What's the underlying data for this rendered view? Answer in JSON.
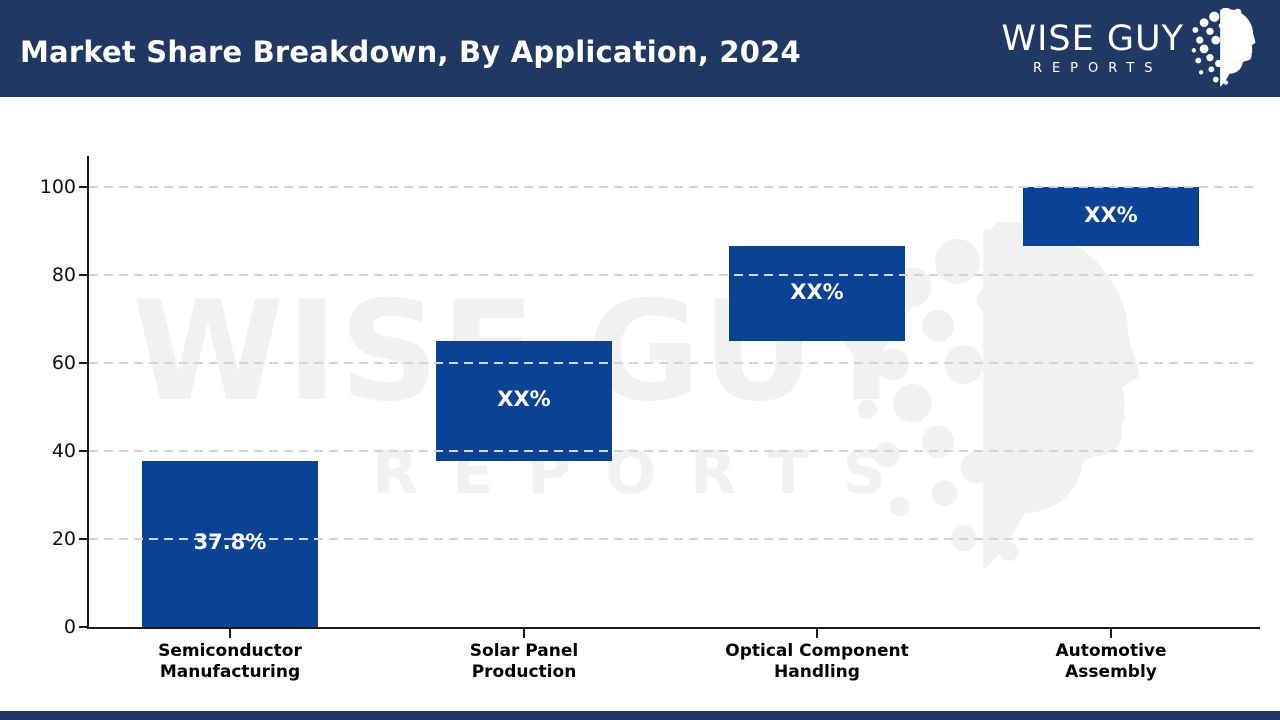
{
  "header": {
    "title": "Market Share Breakdown, By Application, 2024",
    "brand": {
      "line1": "WISE GUY",
      "line2": "REPORTS"
    }
  },
  "watermark": {
    "line1": "WISE GUY",
    "line2": "REPORTS"
  },
  "chart_data": {
    "type": "bar",
    "variant": "waterfall",
    "title": "Market Share Breakdown, By Application, 2024",
    "xlabel": "",
    "ylabel": "",
    "ylim": [
      0,
      100
    ],
    "y_ticks": [
      0,
      20,
      40,
      60,
      80,
      100
    ],
    "grid": "horizontal-dashed",
    "legend": false,
    "bar_color": "#0A4296",
    "value_label_color": "#ffffff",
    "categories": [
      [
        "Semiconductor",
        "Manufacturing"
      ],
      [
        "Solar Panel",
        "Production"
      ],
      [
        "Optical Component",
        "Handling"
      ],
      [
        "Automotive",
        "Assembly"
      ]
    ],
    "segments": [
      {
        "category": "Semiconductor Manufacturing",
        "start": 0,
        "end": 37.8,
        "label": "37.8%"
      },
      {
        "category": "Solar Panel Production",
        "start": 37.8,
        "end": 65,
        "label": "XX%"
      },
      {
        "category": "Optical Component Handling",
        "start": 65,
        "end": 86.5,
        "label": "XX%"
      },
      {
        "category": "Automotive Assembly",
        "start": 86.5,
        "end": 100,
        "label": "XX%"
      }
    ]
  },
  "colors": {
    "header_bg": "#1F3864",
    "bar": "#0A4296",
    "grid": "#d4d4d4",
    "axis": "#1a1a1a",
    "watermark": "#f1f1f1"
  }
}
